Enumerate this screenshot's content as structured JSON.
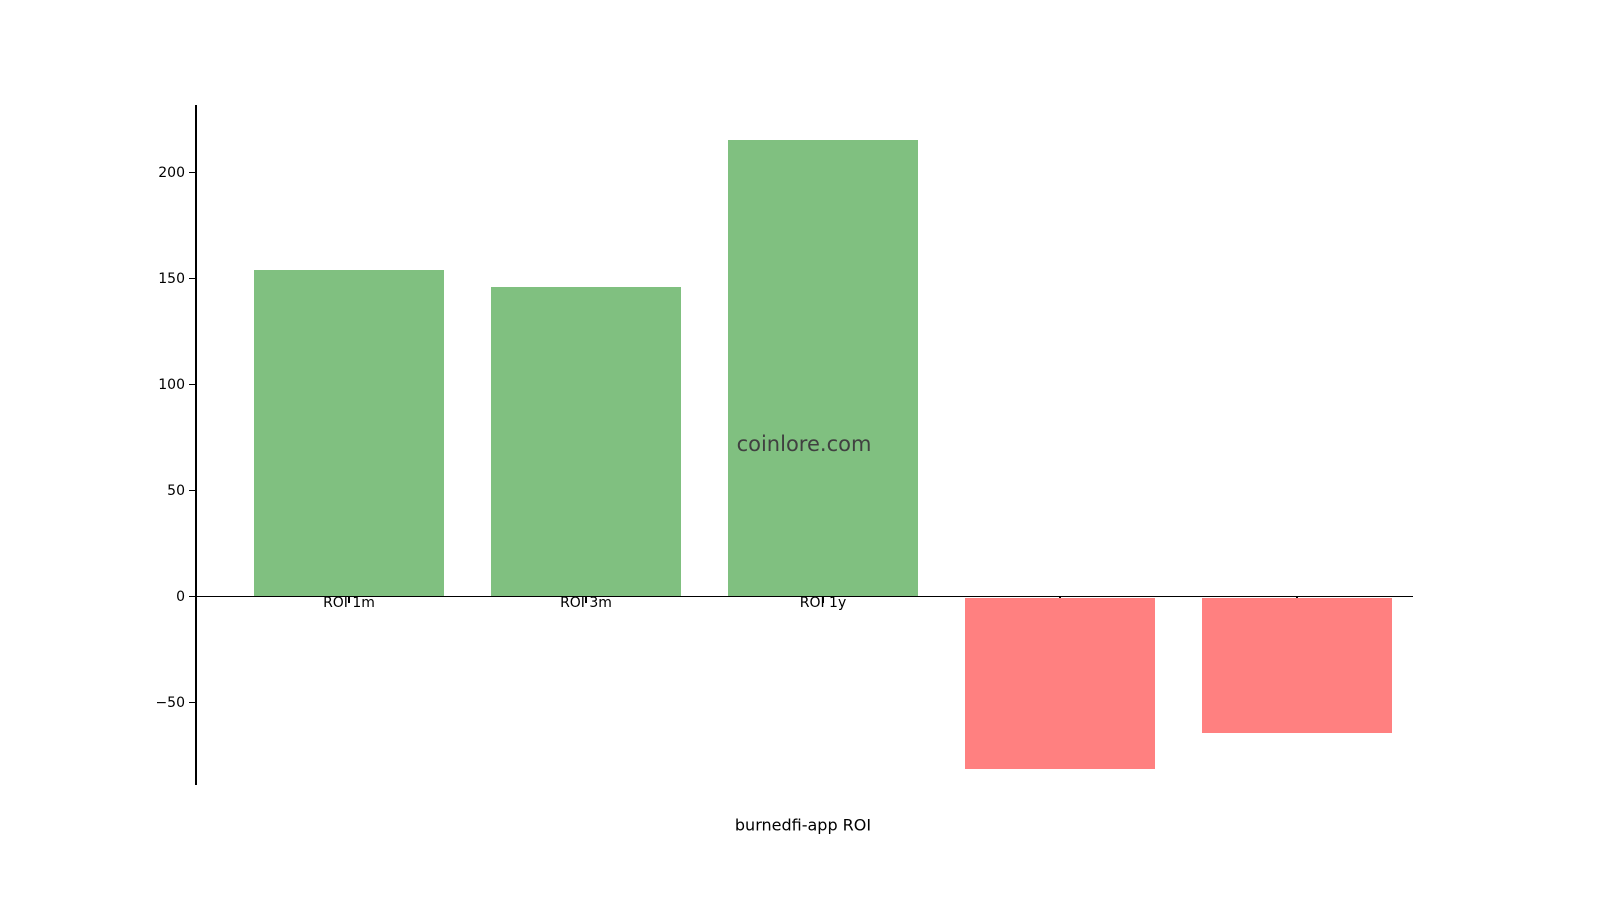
{
  "chart_data": {
    "type": "bar",
    "title": "burnedfi-app ROI",
    "watermark": "coinlore.com",
    "categories": [
      "ROI 1m",
      "ROI 3m",
      "ROI 1y",
      "",
      ""
    ],
    "values": [
      154,
      146,
      215.5,
      -81,
      -64
    ],
    "bar_colors": [
      "#80c080",
      "#80c080",
      "#80c080",
      "#ff8080",
      "#ff8080"
    ],
    "positive_color": "#80c080",
    "negative_color": "#ff8080",
    "yticks": [
      200,
      150,
      100,
      50,
      0,
      -50
    ],
    "ytick_labels": [
      "200",
      "150",
      "100",
      "50",
      "0",
      "−50"
    ],
    "ylim": [
      -89,
      232
    ],
    "xlabel": "",
    "ylabel": "",
    "grid": false,
    "legend": "none",
    "axis_color": "#000000",
    "tick_text_color": "#000000",
    "title_color": "#000000",
    "watermark_color": "#404040",
    "background_color": "#ffffff"
  }
}
